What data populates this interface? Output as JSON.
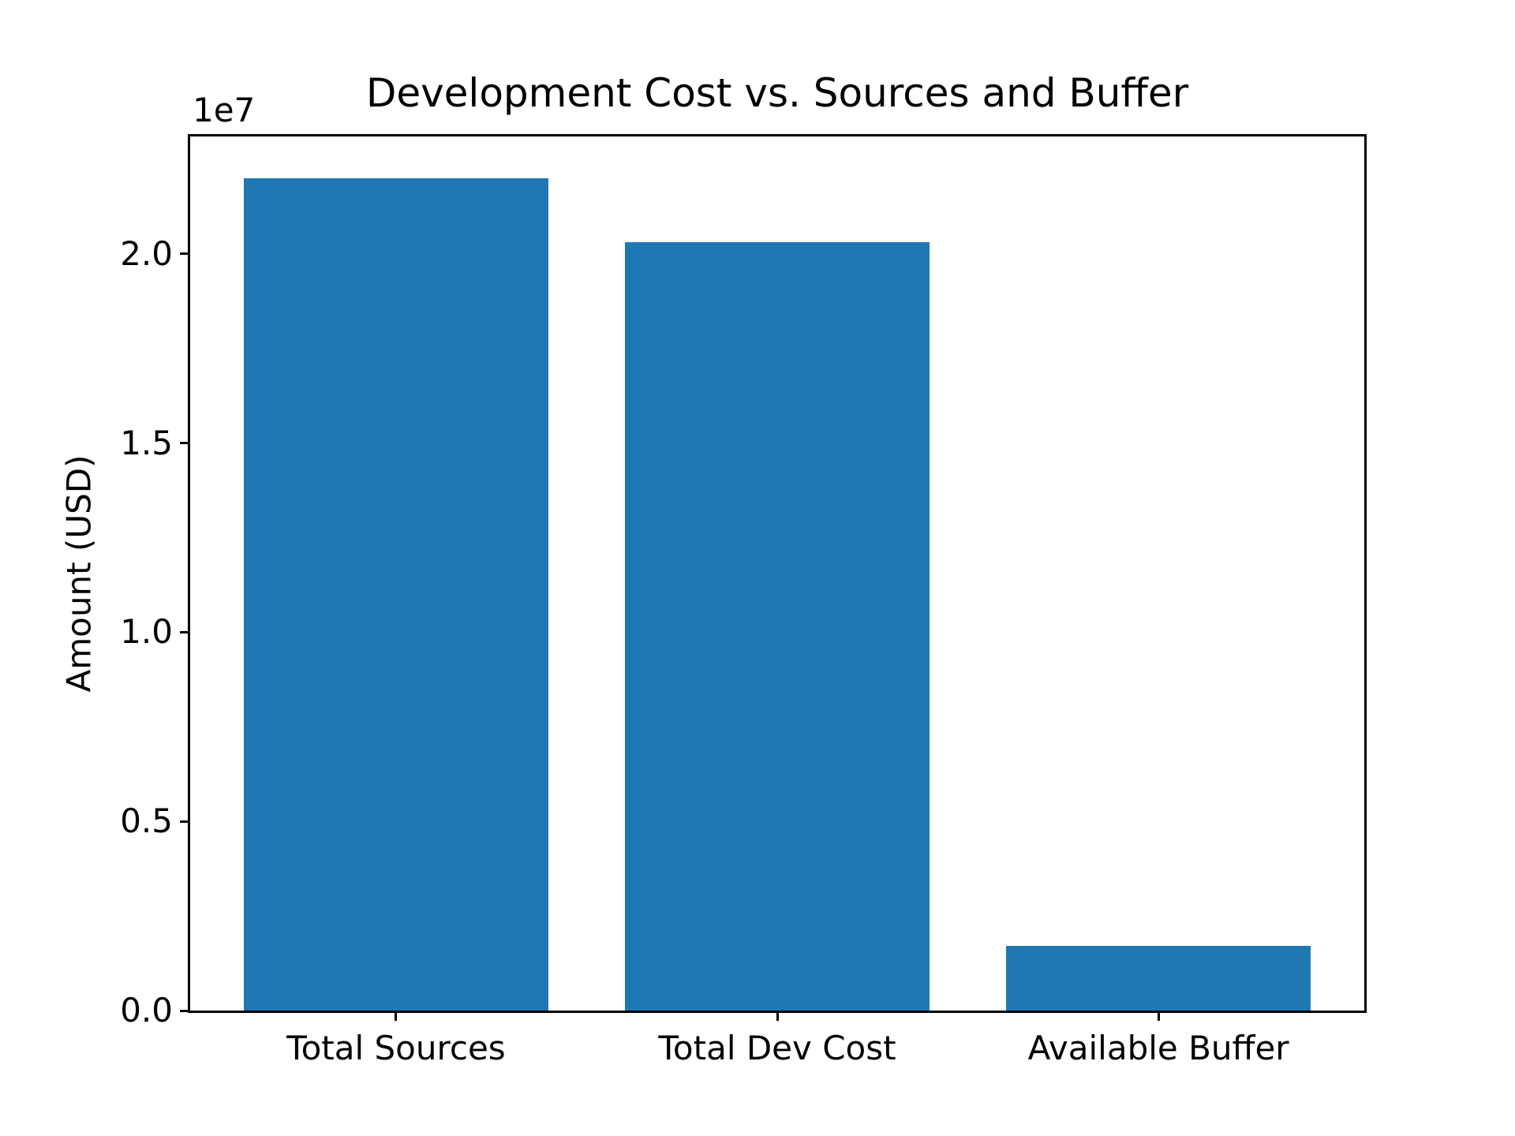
{
  "chart_data": {
    "type": "bar",
    "title": "Development Cost vs. Sources and Buffer",
    "categories": [
      "Total Sources",
      "Total Dev Cost",
      "Available Buffer"
    ],
    "values": [
      22000000,
      20300000,
      1700000
    ],
    "xlabel": "",
    "ylabel": "Amount (USD)",
    "ylim": [
      0,
      23100000
    ],
    "yticks": [
      {
        "label": "0.0",
        "value": 0
      },
      {
        "label": "0.5",
        "value": 5000000
      },
      {
        "label": "1.0",
        "value": 10000000
      },
      {
        "label": "1.5",
        "value": 15000000
      },
      {
        "label": "2.0",
        "value": 20000000
      }
    ],
    "y_offset_label": "1e7",
    "bar_color": "#1f77b4",
    "bar_width_fraction": 0.8,
    "x_margin_units": 0.14,
    "grid": false,
    "legend_position": "none"
  }
}
